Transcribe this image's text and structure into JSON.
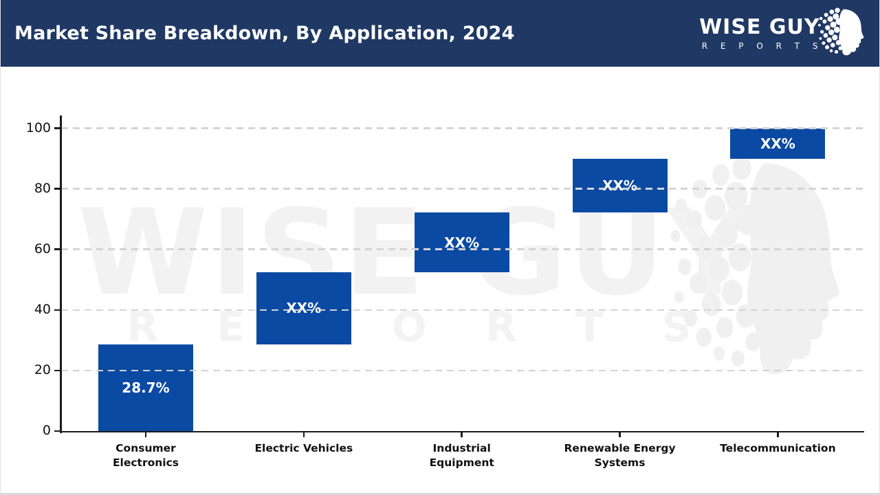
{
  "header": {
    "title": "Market Share Breakdown, By Application, 2024",
    "logo": {
      "line1": "WISE GUY",
      "line2": "R E P O R T S"
    }
  },
  "watermark": {
    "line1": "WISE GUY",
    "line2": "R E P O R T S"
  },
  "chart_data": {
    "type": "bar",
    "subtype": "waterfall",
    "title": "Market Share Breakdown, By Application, 2024",
    "categories": [
      "Consumer Electronics",
      "Electric Vehicles",
      "Industrial Equipment",
      "Renewable Energy Systems",
      "Telecommunication"
    ],
    "category_label_lines": [
      [
        "Consumer",
        "Electronics"
      ],
      [
        "Electric Vehicles"
      ],
      [
        "Industrial",
        "Equipment"
      ],
      [
        "Renewable Energy",
        "Systems"
      ],
      [
        "Telecommunication"
      ]
    ],
    "segments": [
      {
        "category": "Consumer Electronics",
        "start": 0,
        "end": 28.7,
        "label": "28.7%"
      },
      {
        "category": "Electric Vehicles",
        "start": 28.7,
        "end": 52.4,
        "label": "XX%"
      },
      {
        "category": "Industrial Equipment",
        "start": 52.4,
        "end": 72.2,
        "label": "XX%"
      },
      {
        "category": "Renewable Energy Systems",
        "start": 72.2,
        "end": 90.0,
        "label": "XX%"
      },
      {
        "category": "Telecommunication",
        "start": 90.0,
        "end": 100.0,
        "label": "XX%"
      }
    ],
    "values_estimated": [
      28.7,
      23.7,
      19.8,
      17.8,
      10.0
    ],
    "ylim": [
      0,
      100
    ],
    "yticks": [
      0,
      20,
      40,
      60,
      80,
      100
    ],
    "xlabel": "",
    "ylabel": "",
    "grid": "horizontal-dashed",
    "legend": "none",
    "colors": {
      "bar": "#0b4aa2",
      "bar_label": "#ffffff",
      "header_bg": "#1f3864",
      "axis": "#1a1a1a",
      "grid": "#d4d4d4",
      "watermark": "#f2f2f2"
    }
  }
}
